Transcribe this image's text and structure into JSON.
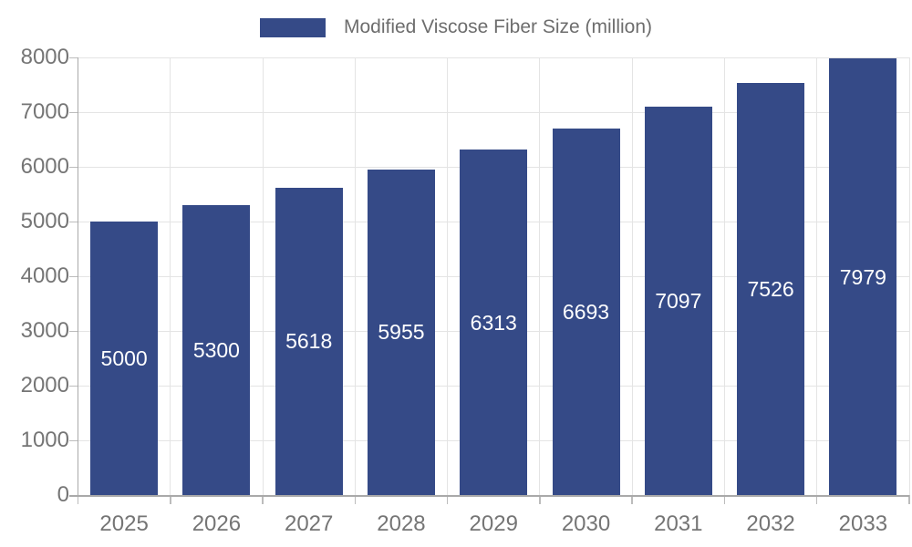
{
  "chart_data": {
    "type": "bar",
    "title": "Modified Viscose Fiber Size (million)",
    "legend": [
      "Modified Viscose Fiber Size (million)"
    ],
    "legend_position": "top",
    "categories": [
      "2025",
      "2026",
      "2027",
      "2028",
      "2029",
      "2030",
      "2031",
      "2032",
      "2033"
    ],
    "series": [
      {
        "name": "Modified Viscose Fiber Size (million)",
        "values": [
          5000,
          5300,
          5618,
          5955,
          6313,
          6693,
          7097,
          7526,
          7979
        ]
      }
    ],
    "value_labels": [
      "5000",
      "5300",
      "5618",
      "5955",
      "6313",
      "6693",
      "7097",
      "7526",
      "7979"
    ],
    "xlabel": "",
    "ylabel": "",
    "ylim": [
      0,
      8000
    ],
    "y_ticks": [
      0,
      1000,
      2000,
      3000,
      4000,
      5000,
      6000,
      7000,
      8000
    ],
    "grid": true,
    "colors": {
      "bar": "#354A87",
      "grid": "#e4e4e4",
      "axis": "#a9a9a9",
      "tick_mark": "#bcbcbc",
      "tick_label": "#757575",
      "legend_text": "#6d6d6d",
      "value_label": "#ffffff"
    }
  }
}
